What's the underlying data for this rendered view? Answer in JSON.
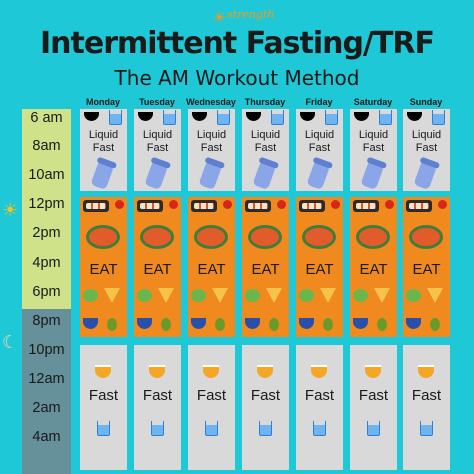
{
  "brand": {
    "logo_text": "strength",
    "sun_glyph": "☀"
  },
  "title": "Intermittent Fasting/TRF",
  "subtitle": "The AM Workout Method",
  "days": [
    "Monday",
    "Tuesday",
    "Wednesday",
    "Thursday",
    "Friday",
    "Saturday",
    "Sunday"
  ],
  "times": [
    "6 am",
    "8am",
    "10am",
    "12pm",
    "2pm",
    "4pm",
    "6pm",
    "8pm",
    "10pm",
    "12am",
    "2am",
    "4am"
  ],
  "blocks": {
    "liquid_fast_line1": "Liquid",
    "liquid_fast_line2": "Fast",
    "eat": "EAT",
    "fast": "Fast"
  },
  "side_icons": {
    "noon": "☀",
    "night": "☾"
  },
  "colors": {
    "background": "#1ec8d6",
    "eat_block": "#f08a1e",
    "fast_block": "#d9d9d9",
    "day_times": "#cfe28a",
    "night_times": "#66909a"
  },
  "icons": [
    "coffee-cup-icon",
    "water-glass-icon",
    "shaker-bottle-icon",
    "sushi-icon",
    "apple-icon",
    "bowl-icon",
    "salad-icon",
    "pizza-icon",
    "avocado-icon",
    "tea-cup-icon"
  ]
}
